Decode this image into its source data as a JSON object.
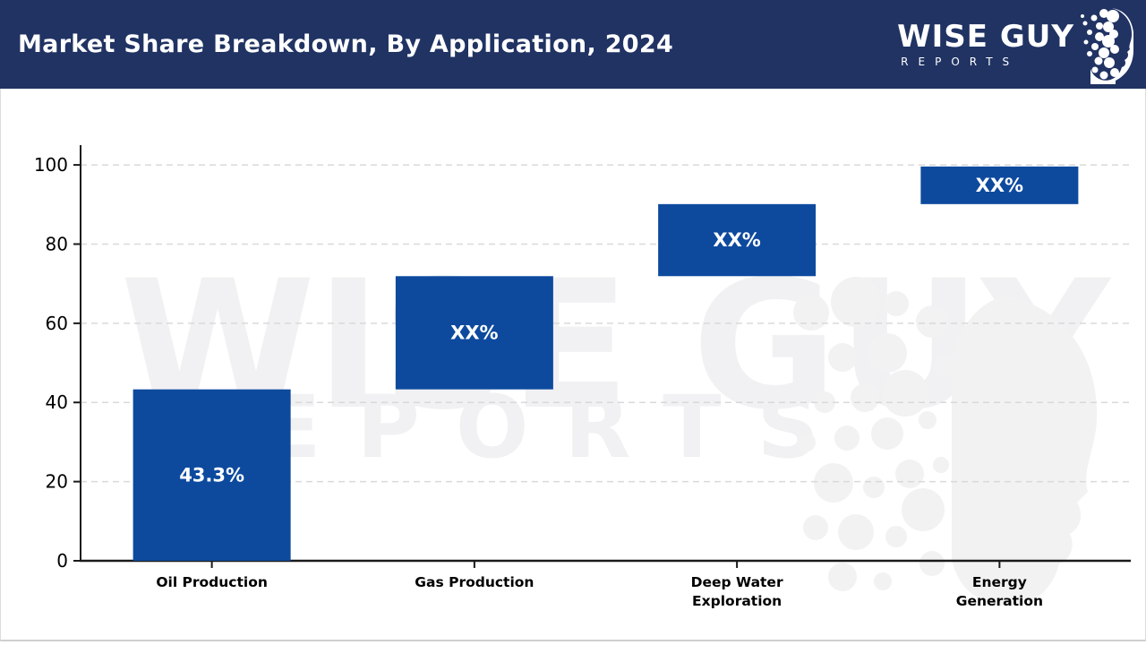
{
  "header": {
    "title": "Market Share Breakdown, By Application, 2024",
    "bg_color": "#203363",
    "logo": {
      "line1": "WISE GUY",
      "line2": "REPORTS"
    }
  },
  "watermark": {
    "line1": "WISE GUY",
    "line2": "REPORTS"
  },
  "chart_data": {
    "type": "bar",
    "subtype": "waterfall",
    "title": "Market Share Breakdown, By Application, 2024",
    "categories": [
      "Oil Production",
      "Gas Production",
      "Deep Water Exploration",
      "Energy Generation"
    ],
    "segments": [
      {
        "category": "Oil Production",
        "start": 0,
        "end": 43.3,
        "label": "43.3%"
      },
      {
        "category": "Gas Production",
        "start": 43.3,
        "end": 71.9,
        "label": "XX%"
      },
      {
        "category": "Deep Water Exploration",
        "start": 71.9,
        "end": 90.1,
        "label": "XX%"
      },
      {
        "category": "Energy Generation",
        "start": 90.1,
        "end": 99.6,
        "label": "XX%"
      }
    ],
    "yticks": [
      0,
      20,
      40,
      60,
      80,
      100
    ],
    "ylim": [
      0,
      105
    ],
    "xlabel": "",
    "ylabel": "",
    "grid": true,
    "legend": null,
    "bar_color": "#0d4a9e",
    "bar_label_color": "#ffffff",
    "grid_color": "#d9d9d9",
    "axis_color": "#1a1a1a",
    "tick_label_color": "#000000"
  }
}
